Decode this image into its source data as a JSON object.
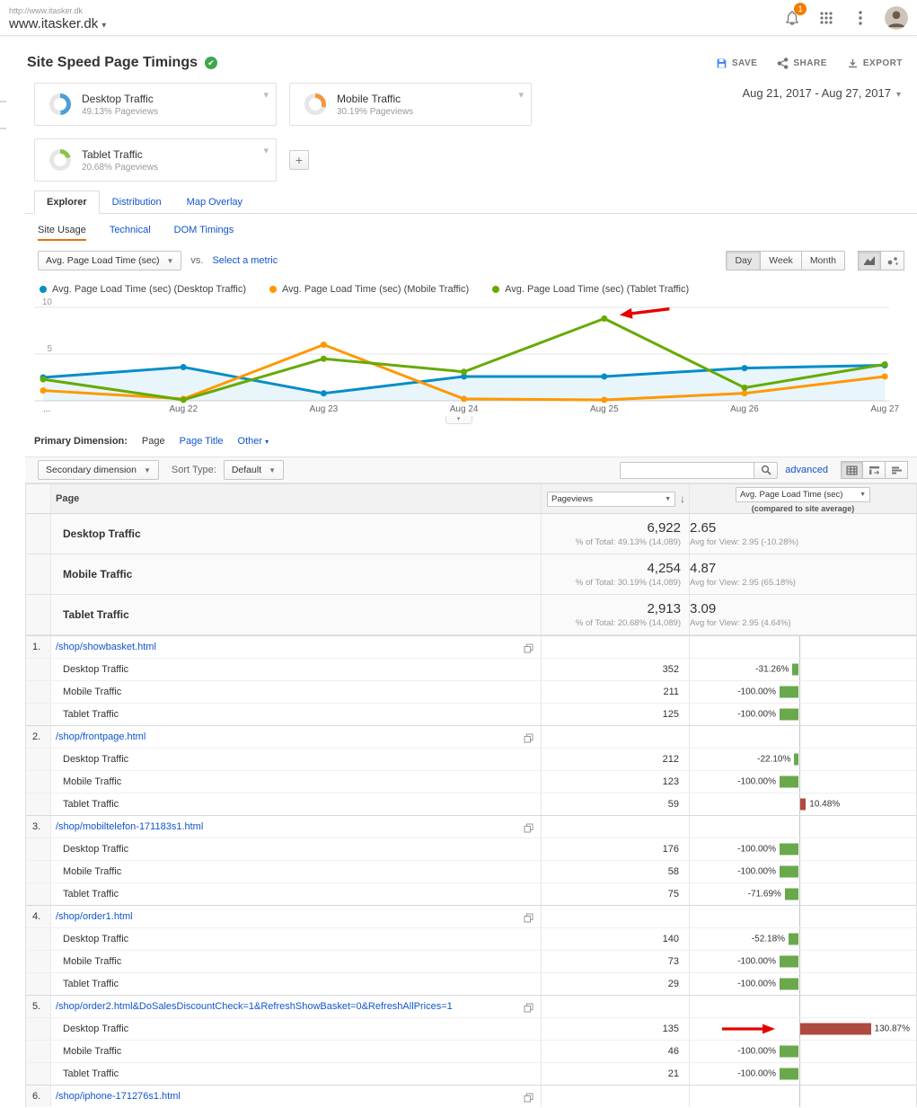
{
  "header": {
    "url": "http://www.itasker.dk",
    "account": "www.itasker.dk",
    "notification_count": "1"
  },
  "report": {
    "title": "Site Speed Page Timings",
    "save_label": "SAVE",
    "share_label": "SHARE",
    "export_label": "EXPORT"
  },
  "segments": {
    "cards": [
      {
        "name": "Desktop Traffic",
        "sub": "49.13% Pageviews",
        "pct": 49.13,
        "color": "#4d9ed6"
      },
      {
        "name": "Mobile Traffic",
        "sub": "30.19% Pageviews",
        "pct": 30.19,
        "color": "#f49742"
      },
      {
        "name": "Tablet Traffic",
        "sub": "20.68% Pageviews",
        "pct": 20.68,
        "color": "#8bc34a"
      }
    ],
    "add_label": "+"
  },
  "date_range": "Aug 21, 2017 - Aug 27, 2017",
  "tabs": {
    "items": [
      "Explorer",
      "Distribution",
      "Map Overlay"
    ],
    "active": "Explorer"
  },
  "subtabs": [
    "Site Usage",
    "Technical",
    "DOM Timings"
  ],
  "metric_controls": {
    "metric": "Avg. Page Load Time (sec)",
    "vs_label": "vs.",
    "select_metric": "Select a metric",
    "granularity": [
      "Day",
      "Week",
      "Month"
    ],
    "active_granularity": "Day"
  },
  "chart_data": {
    "type": "line",
    "x": [
      "...",
      "Aug 22",
      "Aug 23",
      "Aug 24",
      "Aug 25",
      "Aug 26",
      "Aug 27"
    ],
    "ylim": [
      0,
      10
    ],
    "yticks": [
      5,
      10
    ],
    "legend_position": "top",
    "grid": true,
    "series": [
      {
        "name": "Avg. Page Load Time (sec) (Desktop Traffic)",
        "color": "#058dc7",
        "area": true,
        "values": [
          2.5,
          3.6,
          0.8,
          2.6,
          2.6,
          3.5,
          3.8
        ]
      },
      {
        "name": "Avg. Page Load Time (sec) (Mobile Traffic)",
        "color": "#ff9800",
        "area": false,
        "values": [
          1.1,
          0.2,
          6.0,
          0.2,
          0.1,
          0.8,
          2.6
        ]
      },
      {
        "name": "Avg. Page Load Time (sec) (Tablet Traffic)",
        "color": "#66aa00",
        "area": false,
        "values": [
          2.3,
          0.1,
          4.5,
          3.1,
          8.8,
          1.4,
          3.9
        ]
      }
    ],
    "annotation": "red arrow pointing at Tablet Traffic peak on Aug 25"
  },
  "primary_dimension": {
    "label": "Primary Dimension:",
    "options": [
      "Page",
      "Page Title",
      "Other"
    ],
    "active": "Page"
  },
  "table_toolbar": {
    "secondary": "Secondary dimension",
    "sort_type_label": "Sort Type:",
    "sort_type": "Default",
    "advanced": "advanced"
  },
  "table": {
    "col_page": "Page",
    "col_pageviews": "Pageviews",
    "col_metric": "Avg. Page Load Time (sec)",
    "col_metric_sub": "(compared to site average)",
    "summary": [
      {
        "label": "Desktop Traffic",
        "pageviews": "6,922",
        "pv_sub": "% of Total: 49.13% (14,089)",
        "load": "2.65",
        "load_sub": "Avg for View: 2.95 (-10.28%)"
      },
      {
        "label": "Mobile Traffic",
        "pageviews": "4,254",
        "pv_sub": "% of Total: 30.19% (14,089)",
        "load": "4.87",
        "load_sub": "Avg for View: 2.95 (65.18%)"
      },
      {
        "label": "Tablet Traffic",
        "pageviews": "2,913",
        "pv_sub": "% of Total: 20.68% (14,089)",
        "load": "3.09",
        "load_sub": "Avg for View: 2.95 (4.64%)"
      }
    ],
    "groups": [
      {
        "index": "1.",
        "page": "/shop/showbasket.html",
        "rows": [
          {
            "label": "Desktop Traffic",
            "pageviews": "352",
            "pct": -31.26,
            "pct_label": "-31.26%"
          },
          {
            "label": "Mobile Traffic",
            "pageviews": "211",
            "pct": -100,
            "pct_label": "-100.00%"
          },
          {
            "label": "Tablet Traffic",
            "pageviews": "125",
            "pct": -100,
            "pct_label": "-100.00%"
          }
        ]
      },
      {
        "index": "2.",
        "page": "/shop/frontpage.html",
        "rows": [
          {
            "label": "Desktop Traffic",
            "pageviews": "212",
            "pct": -22.1,
            "pct_label": "-22.10%"
          },
          {
            "label": "Mobile Traffic",
            "pageviews": "123",
            "pct": -100,
            "pct_label": "-100.00%"
          },
          {
            "label": "Tablet Traffic",
            "pageviews": "59",
            "pct": 10.48,
            "pct_label": "10.48%"
          }
        ]
      },
      {
        "index": "3.",
        "page": "/shop/mobiltelefon-171183s1.html",
        "rows": [
          {
            "label": "Desktop Traffic",
            "pageviews": "176",
            "pct": -100,
            "pct_label": "-100.00%"
          },
          {
            "label": "Mobile Traffic",
            "pageviews": "58",
            "pct": -100,
            "pct_label": "-100.00%"
          },
          {
            "label": "Tablet Traffic",
            "pageviews": "75",
            "pct": -71.69,
            "pct_label": "-71.69%"
          }
        ]
      },
      {
        "index": "4.",
        "page": "/shop/order1.html",
        "rows": [
          {
            "label": "Desktop Traffic",
            "pageviews": "140",
            "pct": -52.18,
            "pct_label": "-52.18%"
          },
          {
            "label": "Mobile Traffic",
            "pageviews": "73",
            "pct": -100,
            "pct_label": "-100.00%"
          },
          {
            "label": "Tablet Traffic",
            "pageviews": "29",
            "pct": -100,
            "pct_label": "-100.00%"
          }
        ]
      },
      {
        "index": "5.",
        "page": "/shop/order2.html&DoSalesDiscountCheck=1&RefreshShowBasket=0&RefreshAllPrices=1",
        "rows": [
          {
            "label": "Desktop Traffic",
            "pageviews": "135",
            "pct": 130.87,
            "pct_label": "130.87%",
            "arrow": true
          },
          {
            "label": "Mobile Traffic",
            "pageviews": "46",
            "pct": -100,
            "pct_label": "-100.00%"
          },
          {
            "label": "Tablet Traffic",
            "pageviews": "21",
            "pct": -100,
            "pct_label": "-100.00%"
          }
        ]
      },
      {
        "index": "6.",
        "page": "/shop/iphone-171276s1.html",
        "rows": []
      }
    ]
  }
}
